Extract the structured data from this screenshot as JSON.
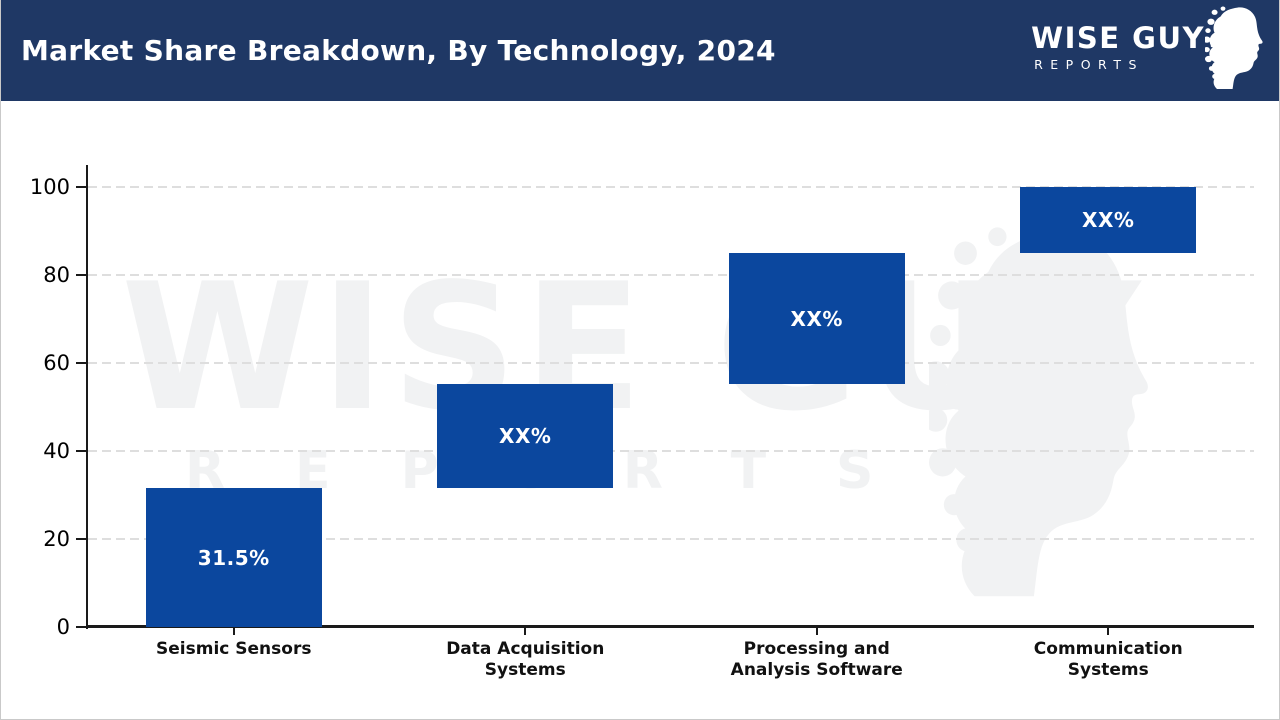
{
  "header": {
    "title": "Market Share Breakdown, By Technology, 2024",
    "logo": {
      "line1": "WISE GUY",
      "line2": "REPORTS"
    }
  },
  "watermark": {
    "line1": "WISE GUY",
    "line2": "REPORTS"
  },
  "colors": {
    "header_bg": "#1f3865",
    "bar": "#0b479e",
    "grid": "#dedede",
    "axis": "#1a1a1a",
    "watermark": "#f1f2f3",
    "bar_label": "#ffffff"
  },
  "chart_data": {
    "type": "bar",
    "subtype": "waterfall",
    "title": "Market Share Breakdown, By Technology, 2024",
    "xlabel": "",
    "ylabel": "",
    "ylim": [
      0,
      105
    ],
    "yticks": [
      0,
      20,
      40,
      60,
      80,
      100
    ],
    "grid": "dashed-horizontal",
    "legend": false,
    "categories": [
      "Seismic Sensors",
      "Data Acquisition Systems",
      "Processing and Analysis Software",
      "Communication Systems"
    ],
    "values": [
      31.5,
      23.7,
      29.7,
      15.1
    ],
    "segments": [
      {
        "category": "Seismic Sensors",
        "category_lines": [
          "Seismic Sensors"
        ],
        "start": 0,
        "end": 31.5,
        "label": "31.5%"
      },
      {
        "category": "Data Acquisition Systems",
        "category_lines": [
          "Data Acquisition",
          "Systems"
        ],
        "start": 31.5,
        "end": 55.2,
        "label": "XX%"
      },
      {
        "category": "Processing and Analysis Software",
        "category_lines": [
          "Processing and",
          "Analysis Software"
        ],
        "start": 55.2,
        "end": 84.9,
        "label": "XX%"
      },
      {
        "category": "Communication Systems",
        "category_lines": [
          "Communication",
          "Systems"
        ],
        "start": 84.9,
        "end": 100,
        "label": "XX%"
      }
    ]
  }
}
